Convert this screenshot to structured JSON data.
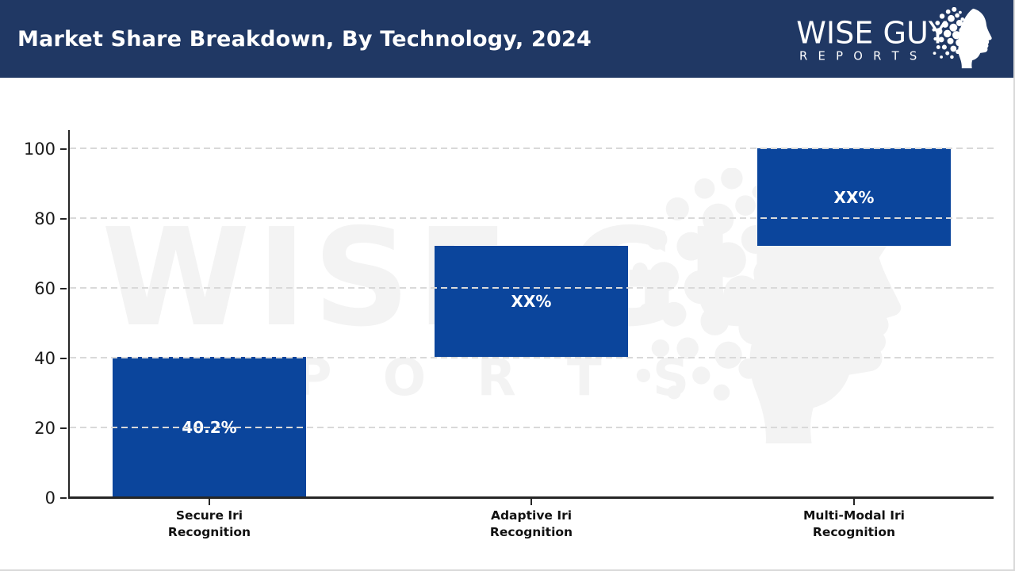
{
  "header": {
    "title": "Market Share Breakdown, By Technology, 2024",
    "logo": {
      "brand": "WISE GUY",
      "sub": "R E P O R T S"
    }
  },
  "watermark": {
    "line1": "WISE GUY",
    "line2": "R E P O R T S"
  },
  "chart_data": {
    "type": "bar",
    "variant": "waterfall",
    "title": "Market Share Breakdown, By Technology, 2024",
    "categories": [
      {
        "line1": "Secure Iri",
        "line2": "Recognition"
      },
      {
        "line1": "Adaptive Iri",
        "line2": "Recognition"
      },
      {
        "line1": "Multi-Modal Iri",
        "line2": "Recognition"
      }
    ],
    "segments": [
      {
        "category": "Secure Iri Recognition",
        "start": 0,
        "end": 40.2,
        "label": "40.2%"
      },
      {
        "category": "Adaptive Iri Recognition",
        "start": 40.2,
        "end": 72,
        "label": "XX%"
      },
      {
        "category": "Multi-Modal Iri Recognition",
        "start": 72,
        "end": 100,
        "label": "XX%"
      }
    ],
    "xlabel": "",
    "ylabel": "",
    "ylim": [
      0,
      100
    ],
    "yticks": [
      0,
      20,
      40,
      60,
      80,
      100
    ],
    "grid": "horizontal-dashed",
    "legend": "none",
    "colors": {
      "bar": "#0b459c",
      "header_background": "#203864",
      "gridline": "#d9d9d9",
      "axis": "#262626",
      "bar_label": "#ffffff",
      "watermark": "#f3f3f3"
    }
  }
}
